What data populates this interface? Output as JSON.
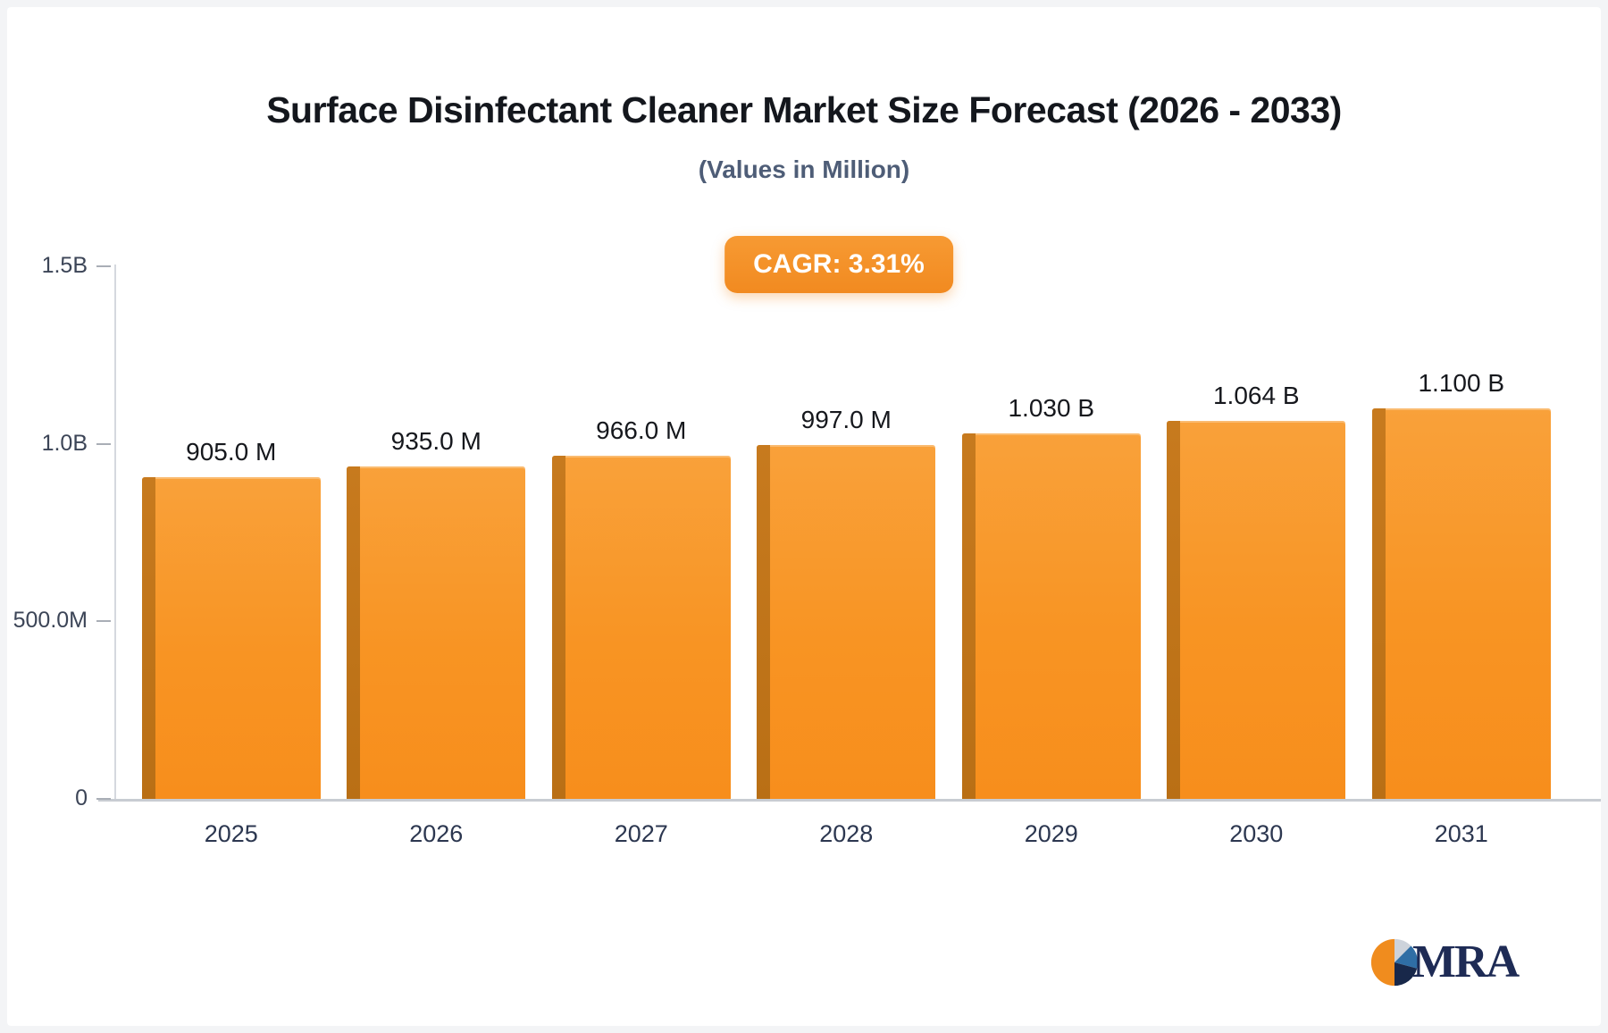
{
  "page": {
    "title": "Surface Disinfectant Cleaner Market Size Forecast (2026 - 2033)",
    "subtitle": "(Values in Million)",
    "cagr_badge": "CAGR: 3.31%"
  },
  "logo": {
    "text": "MRA",
    "icon": "pie-chart-icon"
  },
  "colors": {
    "bar_main": "#F89423",
    "bar_edge": "#C77A1E",
    "badge": "#F18A20",
    "axis": "#C8CCD2",
    "title_text": "#14171D",
    "subtitle_text": "#4E5D77",
    "logo_navy": "#1E2B55",
    "logo_blue": "#2F6EA5"
  },
  "chart_data": {
    "type": "bar",
    "title": "Surface Disinfectant Cleaner Market Size Forecast (2026 - 2033)",
    "subtitle": "(Values in Million)",
    "annotation": "CAGR: 3.31%",
    "categories": [
      "2025",
      "2026",
      "2027",
      "2028",
      "2029",
      "2030",
      "2031"
    ],
    "values": [
      905,
      935,
      966,
      997,
      1030,
      1064,
      1100
    ],
    "unit": "Million",
    "value_labels": [
      "905.0 M",
      "935.0 M",
      "966.0 M",
      "997.0 M",
      "1.030 B",
      "1.064 B",
      "1.100 B"
    ],
    "xlabel": "",
    "ylabel": "",
    "ylim": [
      0,
      1500
    ],
    "y_ticks": [
      {
        "label": "1.5B",
        "value": 1500
      },
      {
        "label": "1.0B",
        "value": 1000
      },
      {
        "label": "500.0M",
        "value": 500
      },
      {
        "label": "0",
        "value": 0
      }
    ],
    "grid": false,
    "legend": false,
    "bar_color": "#F89423"
  }
}
